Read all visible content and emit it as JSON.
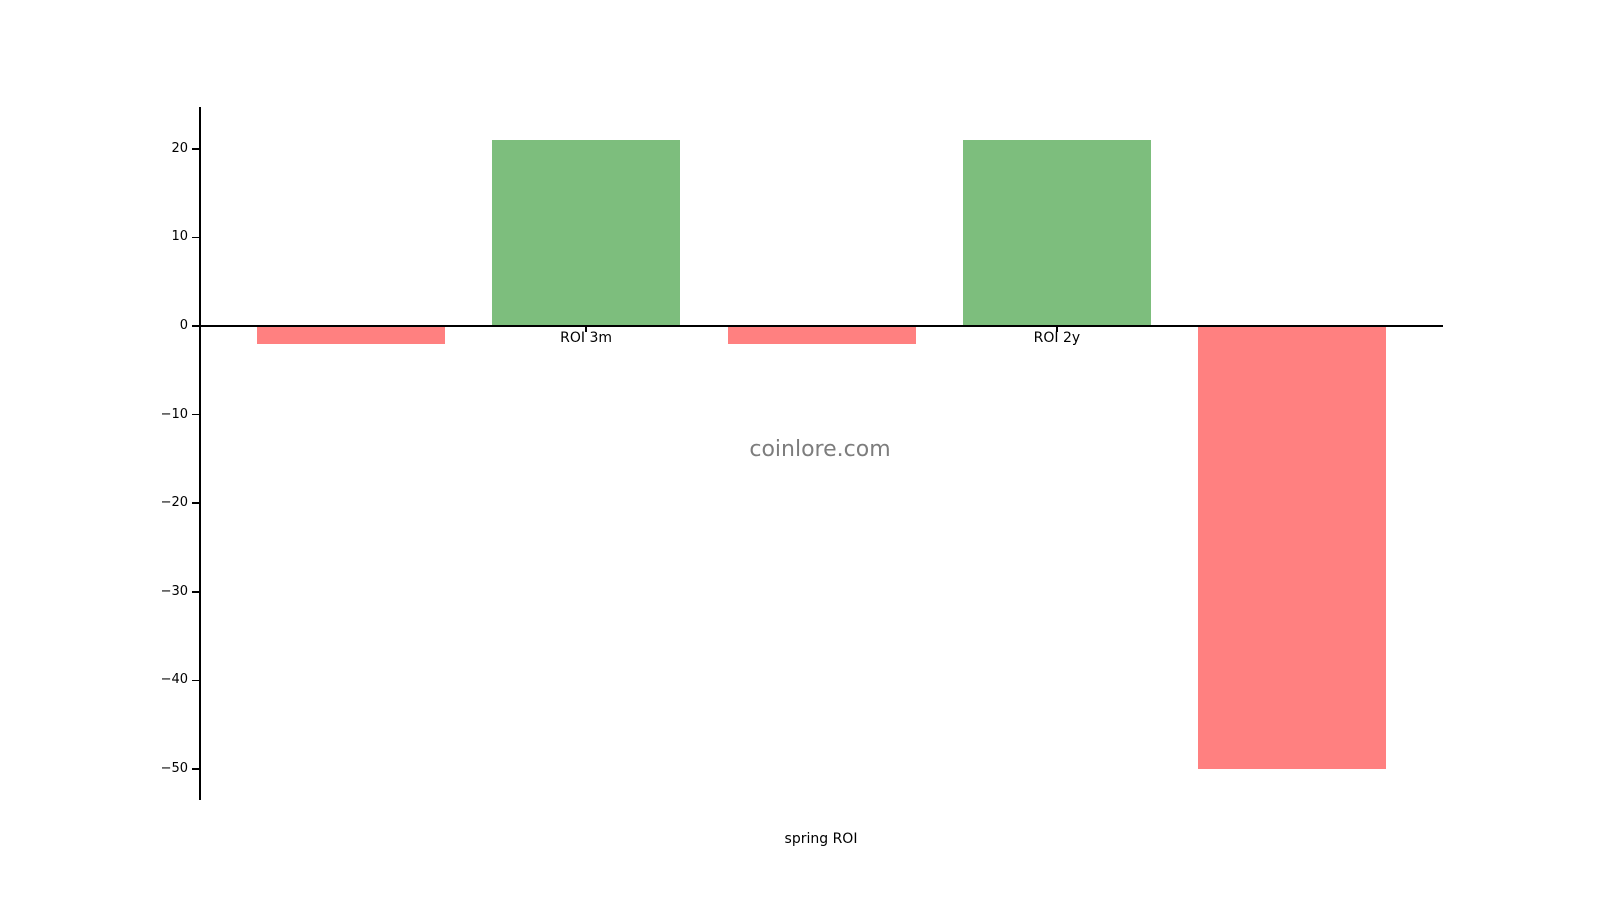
{
  "watermark": {
    "text": "coinlore.com",
    "color": "#7d7d7d"
  },
  "chart_data": {
    "type": "bar",
    "title": "",
    "xlabel": "spring ROI",
    "ylabel": "",
    "categories": [
      "",
      "ROI 3m",
      "",
      "ROI 2y",
      ""
    ],
    "visible_x_tick_labels": [
      "ROI 3m",
      "ROI 2y"
    ],
    "values": [
      -2,
      21,
      -2,
      21,
      -50
    ],
    "bar_colors": [
      "#ff8080",
      "#7dbe7d",
      "#ff8080",
      "#7dbe7d",
      "#ff8080"
    ],
    "positive_color": "#7dbe7d",
    "negative_color": "#ff8080",
    "y_ticks": [
      20,
      10,
      0,
      -10,
      -20,
      -30,
      -40,
      -50
    ],
    "y_tick_labels": [
      "20",
      "10",
      "0",
      "−10",
      "−20",
      "−30",
      "−40",
      "−50"
    ],
    "ylim": [
      -53.6,
      24.9
    ],
    "grid": false,
    "legend": false,
    "axis_color": "#000000"
  }
}
